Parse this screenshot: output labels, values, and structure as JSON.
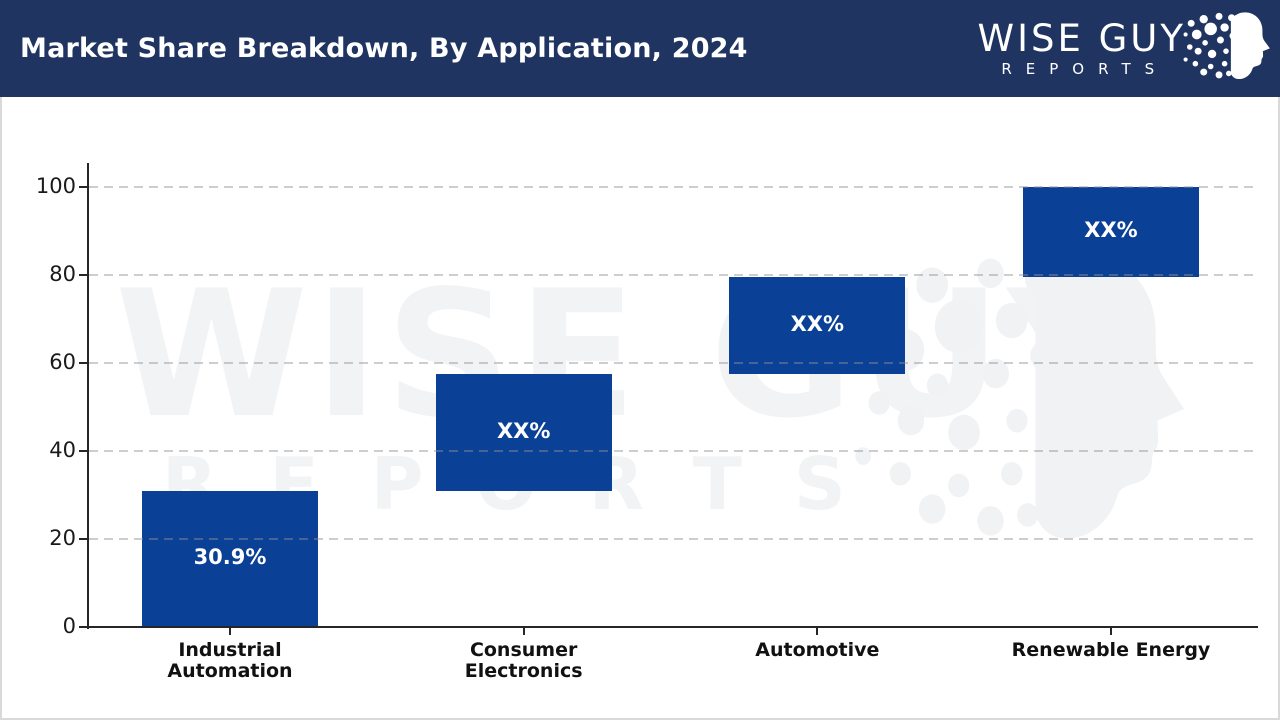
{
  "header": {
    "title": "Market Share Breakdown, By Application, 2024",
    "bg_color": "#203462",
    "logo": {
      "wordmark": "WISE GUY",
      "subtext": "REPORTS"
    }
  },
  "watermark": {
    "line1": "WISE GUY",
    "line2": "REPORTS"
  },
  "chart_data": {
    "type": "bar",
    "subtype": "waterfall",
    "title": "Market Share Breakdown, By Application, 2024",
    "categories": [
      "Industrial Automation",
      "Consumer Electronics",
      "Automotive",
      "Renewable Energy"
    ],
    "label_lines": [
      [
        "Industrial",
        "Automation"
      ],
      [
        "Consumer",
        "Electronics"
      ],
      [
        "Automotive"
      ],
      [
        "Renewable Energy"
      ]
    ],
    "series": [
      {
        "name": "Market Share (%)",
        "segments": [
          {
            "category": "Industrial Automation",
            "start": 0,
            "end": 30.9,
            "label": "30.9%"
          },
          {
            "category": "Consumer Electronics",
            "start": 30.9,
            "end": 57.5,
            "label": "XX%"
          },
          {
            "category": "Automotive",
            "start": 57.5,
            "end": 79.5,
            "label": "XX%"
          },
          {
            "category": "Renewable Energy",
            "start": 79.5,
            "end": 100,
            "label": "XX%"
          }
        ]
      }
    ],
    "xlabel": "",
    "ylabel": "",
    "yticks": [
      0,
      20,
      40,
      60,
      80,
      100
    ],
    "ylim": [
      0,
      105.5
    ],
    "grid": "horizontal-dashed",
    "legend": "none",
    "bar_color": "#0a4095",
    "bar_label_color": "#ffffff",
    "axis_color": "#262626",
    "tick_label_color": "#1a1a1a"
  }
}
